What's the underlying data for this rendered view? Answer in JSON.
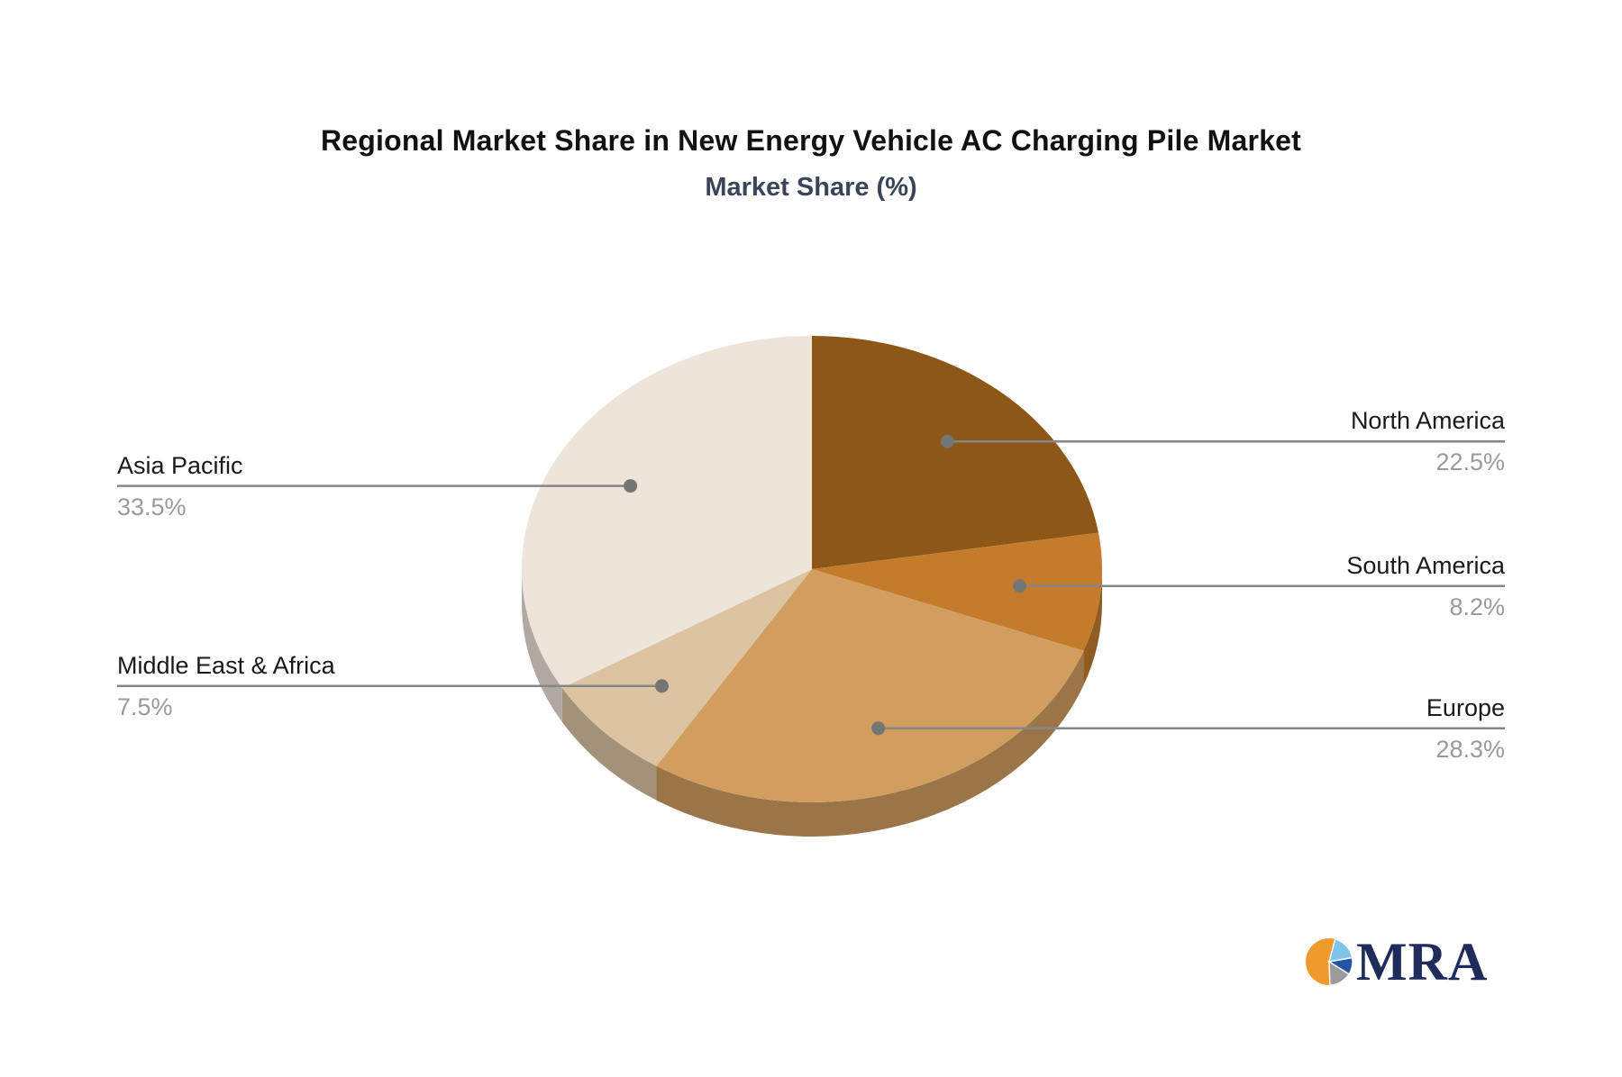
{
  "page": {
    "background": "#ffffff"
  },
  "chart_data": {
    "type": "pie",
    "style": "pie3d",
    "title": "Regional Market Share in New Energy Vehicle AC Charging Pile Market",
    "subtitle": "Market Share (%)",
    "unit": "%",
    "start_angle_deg": 90,
    "direction": "clockwise",
    "legend_position": "none",
    "grid": false,
    "slices": [
      {
        "label": "North America",
        "value": 22.5,
        "pct_label": "22.5%",
        "color": "#8C5717"
      },
      {
        "label": "South America",
        "value": 8.2,
        "pct_label": "8.2%",
        "color": "#C47C2C"
      },
      {
        "label": "Europe",
        "value": 28.3,
        "pct_label": "28.3%",
        "color": "#D29E60"
      },
      {
        "label": "Middle East & Africa",
        "value": 7.5,
        "pct_label": "7.5%",
        "color": "#DCC4A3"
      },
      {
        "label": "Asia Pacific",
        "value": 33.5,
        "pct_label": "33.5%",
        "color": "#EDE4DA"
      }
    ],
    "colors": {
      "title": "#111111",
      "subtitle": "#3B4559",
      "label_text": "#1A1A1A",
      "pct_text": "#9A9A9A",
      "leader_line": "#868686",
      "leader_dot": "#757575"
    }
  },
  "logo": {
    "text": "MRA",
    "text_color": "#1F2B5B",
    "icon": "pie-icon",
    "icon_colors": {
      "orange": "#F0992C",
      "light_blue": "#7EC3EA",
      "dark_blue": "#2554A6",
      "gray": "#9B9B9B"
    }
  }
}
